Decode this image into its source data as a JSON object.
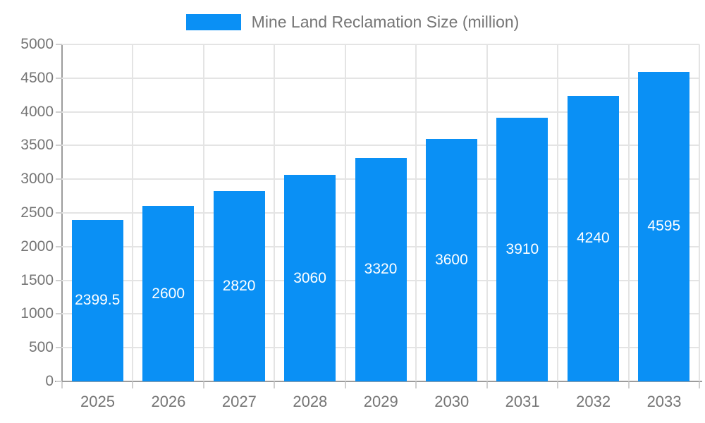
{
  "legend": {
    "label": "Mine Land Reclamation Size (million)"
  },
  "colors": {
    "bar": "#0a90f5",
    "bar_label_text": "#ffffff",
    "axis_line": "#9c9c9c",
    "grid_line": "#e4e4e4",
    "tick_text": "#757575"
  },
  "chart_data": {
    "type": "bar",
    "title": "",
    "xlabel": "",
    "ylabel": "",
    "categories": [
      "2025",
      "2026",
      "2027",
      "2028",
      "2029",
      "2030",
      "2031",
      "2032",
      "2033"
    ],
    "series": [
      {
        "name": "Mine Land Reclamation Size (million)",
        "values": [
          2399.5,
          2600,
          2820,
          3060,
          3320,
          3600,
          3910,
          4240,
          4595
        ],
        "data_labels": [
          "2399.5",
          "2600",
          "2820",
          "3060",
          "3320",
          "3600",
          "3910",
          "4240",
          "4595"
        ]
      }
    ],
    "ylim": [
      0,
      5000
    ],
    "ytick_step": 500,
    "y_ticks": [
      0,
      500,
      1000,
      1500,
      2000,
      2500,
      3000,
      3500,
      4000,
      4500,
      5000
    ],
    "grid": "horizontal and vertical light gray gridlines",
    "legend_position": "top-center",
    "bar_labels_position": "inside-center-white"
  }
}
